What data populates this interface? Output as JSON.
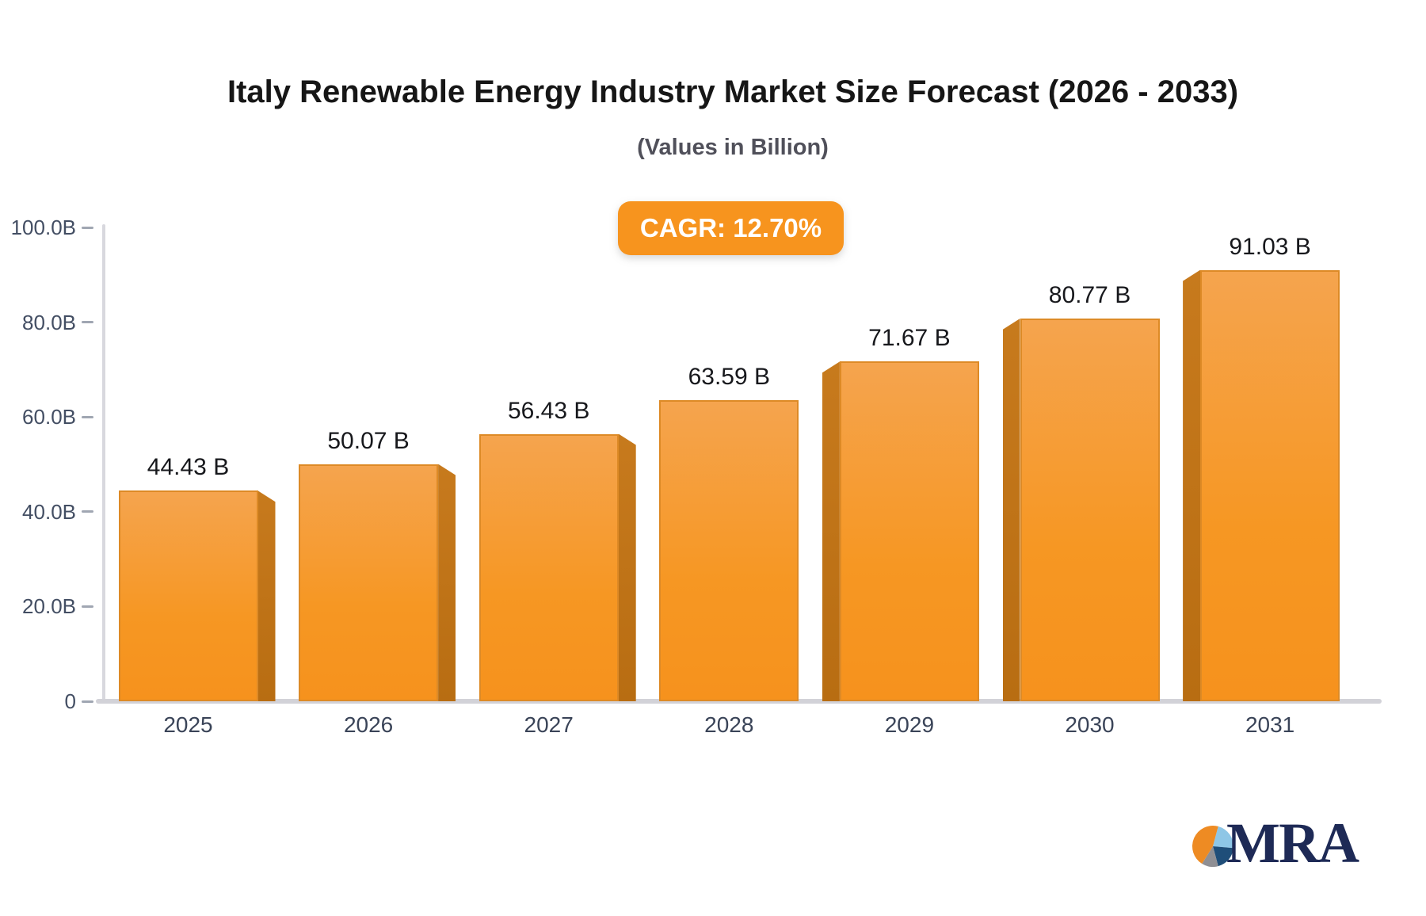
{
  "chart_data": {
    "type": "bar",
    "title": "Italy Renewable Energy Industry Market Size Forecast (2026 - 2033)",
    "subtitle": "(Values in Billion)",
    "annotation_badge": "CAGR: 12.70%",
    "categories": [
      "2025",
      "2026",
      "2027",
      "2028",
      "2029",
      "2030",
      "2031"
    ],
    "values": [
      44.43,
      50.07,
      56.43,
      63.59,
      71.67,
      80.77,
      91.03
    ],
    "value_labels": [
      "44.43 B",
      "50.07 B",
      "56.43 B",
      "63.59 B",
      "71.67 B",
      "80.77 B",
      "91.03 B"
    ],
    "xlabel": "",
    "ylabel": "",
    "ylim": [
      0,
      100
    ],
    "y_ticks": {
      "values": [
        100,
        80,
        60,
        40,
        20,
        0
      ],
      "labels": [
        "100.0B",
        "80.0B",
        "60.0B",
        "40.0B",
        "20.0B",
        "0"
      ]
    },
    "grid": false,
    "legend": "none",
    "bar_style": "3d-perspective-center-vanishing",
    "colors": {
      "bar_top": "#f5a44e",
      "bar_mid": "#f69723",
      "bar_bottom": "#f6921d",
      "bar_border": "#dd8a26",
      "bar_side_top": "#c77a1d",
      "bar_side_bottom": "#b86d12",
      "axis_line": "#d8d8de",
      "baseline": "#d2d2d8",
      "tick": "#a0a6b2",
      "tick_label": "#434e63",
      "axis_label": "#3a4458",
      "value_label": "#17181c",
      "badge_bg": "#f7941e",
      "badge_text": "#ffffff"
    }
  },
  "logo": {
    "text": "MRA",
    "colors": {
      "orange": "#ee8b23",
      "light_blue": "#8ec6e6",
      "navy": "#1f4e79",
      "gray": "#8f8f94",
      "text": "#1e2a56"
    }
  }
}
